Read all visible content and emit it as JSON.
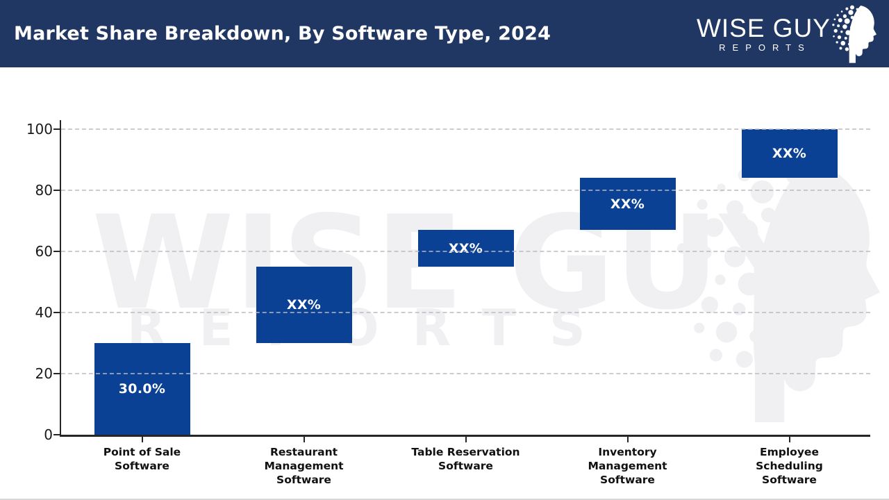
{
  "header": {
    "title": "Market Share Breakdown, By Software Type, 2024",
    "logo_line1": "WISE GUY",
    "logo_line2": "REPORTS"
  },
  "watermark": {
    "line1": "WISE GUY",
    "line2": "REPORTS"
  },
  "colors": {
    "header_bg": "#213763",
    "bar": "#0a4195",
    "grid": "#c9c9ce",
    "axis": "#262626",
    "bar_label": "#ffffff",
    "watermark": "#f0f0f3"
  },
  "chart_data": {
    "type": "bar",
    "subtype": "floating-waterfall",
    "title": "Market Share Breakdown, By Software Type, 2024",
    "xlabel": "",
    "ylabel": "",
    "categories": [
      [
        "Point of Sale",
        "Software"
      ],
      [
        "Restaurant",
        "Management",
        "Software"
      ],
      [
        "Table Reservation",
        "Software"
      ],
      [
        "Inventory",
        "Management",
        "Software"
      ],
      [
        "Employee",
        "Scheduling",
        "Software"
      ]
    ],
    "bars": [
      {
        "category": "Point of Sale Software",
        "start": 0,
        "end": 30,
        "value": 30,
        "label": "30.0%"
      },
      {
        "category": "Restaurant Management Software",
        "start": 30,
        "end": 55,
        "value": 25,
        "label": "XX%"
      },
      {
        "category": "Table Reservation Software",
        "start": 55,
        "end": 67,
        "value": 12,
        "label": "XX%"
      },
      {
        "category": "Inventory Management Software",
        "start": 67,
        "end": 84,
        "value": 17,
        "label": "XX%"
      },
      {
        "category": "Employee Scheduling Software",
        "start": 84,
        "end": 100,
        "value": 16,
        "label": "XX%"
      }
    ],
    "yticks": [
      0,
      20,
      40,
      60,
      80,
      100
    ],
    "ylim": [
      0,
      103
    ],
    "grid": "horizontal-dashed",
    "legend": null,
    "bar_color": "#0a4195"
  }
}
